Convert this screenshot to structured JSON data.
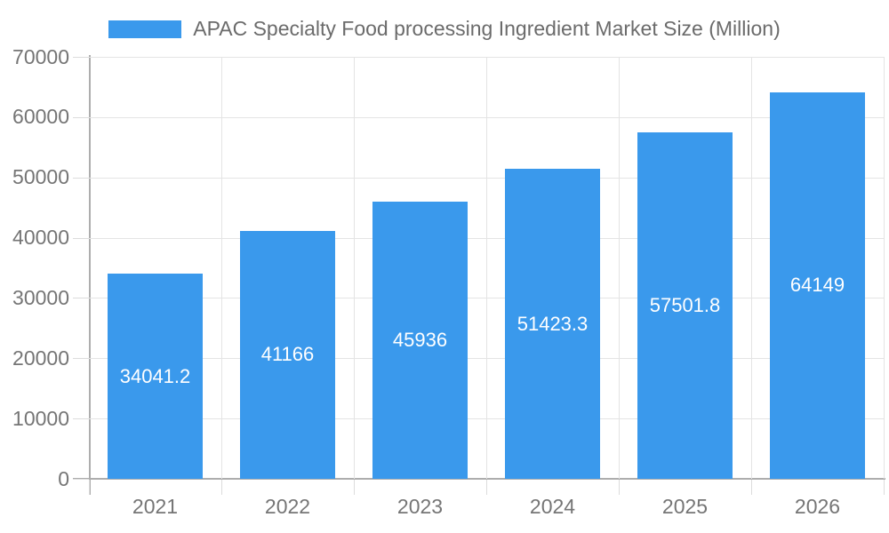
{
  "legend": {
    "label": "APAC Specialty Food processing Ingredient Market Size (Million)"
  },
  "chart_data": {
    "type": "bar",
    "title": "APAC Specialty Food processing Ingredient Market Size (Million)",
    "categories": [
      "2021",
      "2022",
      "2023",
      "2024",
      "2025",
      "2026"
    ],
    "values": [
      34041.2,
      41166,
      45936,
      51423.3,
      57501.8,
      64149
    ],
    "value_labels": [
      "34041.2",
      "41166",
      "45936",
      "51423.3",
      "57501.8",
      "64149"
    ],
    "xlabel": "",
    "ylabel": "",
    "ylim": [
      0,
      70000
    ],
    "y_ticks": [
      0,
      10000,
      20000,
      30000,
      40000,
      50000,
      60000,
      70000
    ],
    "y_tick_labels": [
      "0",
      "10000",
      "20000",
      "30000",
      "40000",
      "50000",
      "60000",
      "70000"
    ],
    "grid": true,
    "legend_position": "top",
    "value_label_position": "inside-middle",
    "colors": {
      "bar": "#3a99ec",
      "grid": "#e4e4e4",
      "axis": "#adadad",
      "tick": "#dcdcdc",
      "axis_text": "#757575",
      "legend_text": "#6b6b6b",
      "value_text": "#ffffff",
      "background": "#ffffff"
    }
  }
}
